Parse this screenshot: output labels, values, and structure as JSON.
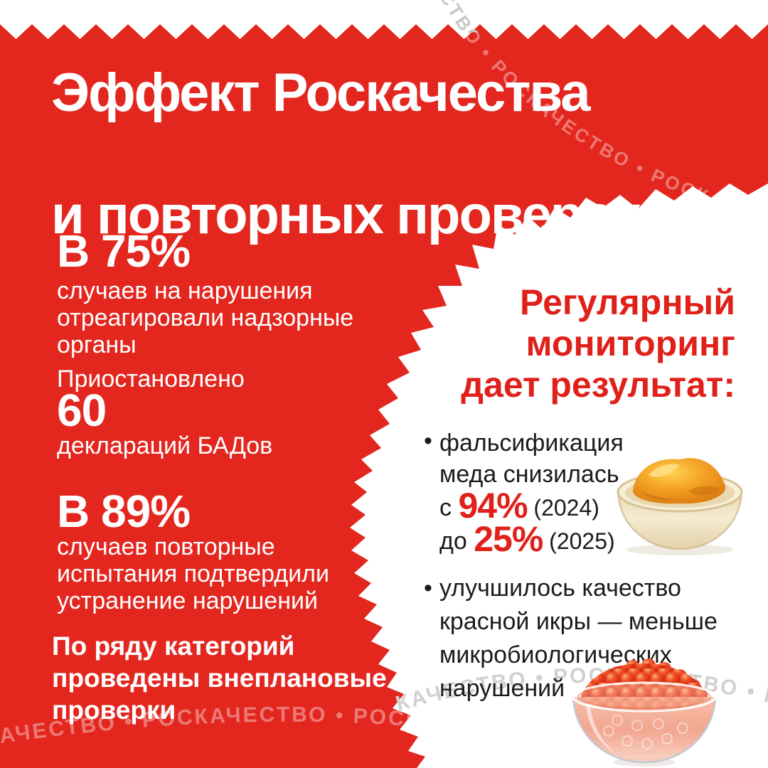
{
  "title": {
    "line1": "Эффект Роскачества",
    "line2": "и повторных проверок"
  },
  "left_stats": {
    "stat1": {
      "value": "В 75%",
      "desc": "случаев на нарушения\nотреагировали надзорные\nорганы"
    },
    "stat2": {
      "label": "Приостановлено",
      "value": "60",
      "desc": "деклараций БАДов"
    },
    "stat3": {
      "value": "В 89%",
      "desc": "случаев повторные\nиспытания подтвердили\nустранение нарушений"
    },
    "note": "По ряду категорий\nпроведены внеплановые\nпроверки"
  },
  "right_panel": {
    "heading": "Регулярный\nмониторинг\nдает результат:",
    "bullet_marker": "•",
    "bullet_honey": {
      "line1": "фальсификация",
      "line2": "меда снизилась",
      "line3_prefix": "с ",
      "line3_value": "94%",
      "line3_suffix": " (2024)",
      "line4_prefix": "до ",
      "line4_value": "25%",
      "line4_suffix": " (2025)"
    },
    "bullet_caviar": {
      "text": "улучшилось качество\nкрасной икры — меньше\nмикробиологических\nнарушений"
    },
    "images": [
      {
        "name": "honey-bowl"
      },
      {
        "name": "caviar-bowl"
      }
    ]
  },
  "watermark": {
    "top_arc": "ЧЕСТВО • РОСКАЧЕСТВО • РОСКАЧЕСТВО",
    "bottom_left": "СКАЧЕСТВО • РОСКАЧЕСТВО • РОСКАЧЕСТВО • РО",
    "bottom_right": "КАЧЕСТВО • РОСКАЧЕСТВО • РОСКАЧЕСТВО"
  },
  "colors": {
    "background_red": "#e3271f",
    "accent_red_text": "#e0211a",
    "text_white": "#ffffff",
    "text_black": "#1d1b1a",
    "watermark_on_red": "rgba(255,255,255,0.38)",
    "watermark_on_white": "#d3d0d0",
    "honey_amber": "#f39c20",
    "caviar_red": "#e23a1d"
  }
}
